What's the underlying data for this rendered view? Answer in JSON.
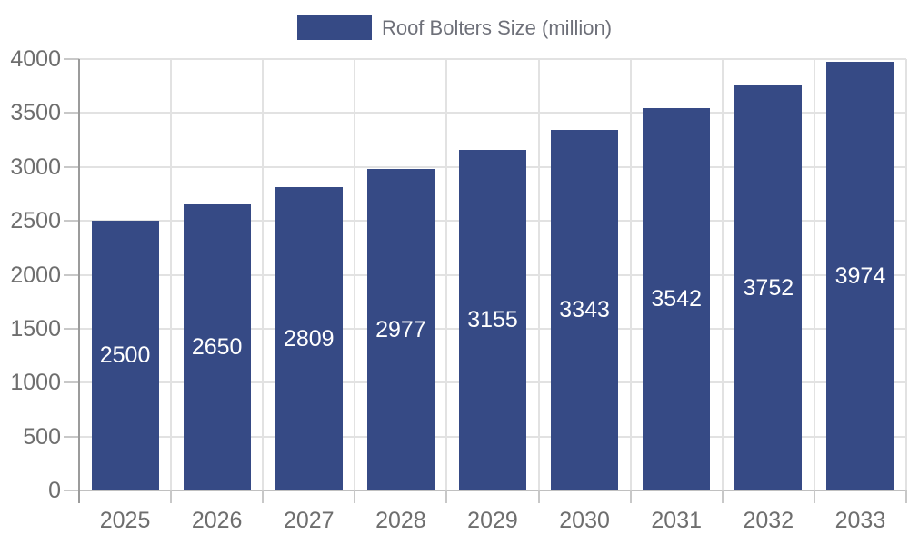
{
  "legend": {
    "label": "Roof Bolters Size (million)"
  },
  "chart_data": {
    "type": "bar",
    "title": "",
    "categories": [
      "2025",
      "2026",
      "2027",
      "2028",
      "2029",
      "2030",
      "2031",
      "2032",
      "2033"
    ],
    "series": [
      {
        "name": "Roof Bolters Size (million)",
        "values": [
          2500,
          2650,
          2809,
          2977,
          3155,
          3343,
          3542,
          3752,
          3974
        ]
      }
    ],
    "xlabel": "",
    "ylabel": "",
    "ylim": [
      0,
      4000
    ],
    "yticks": [
      0,
      500,
      1000,
      1500,
      2000,
      2500,
      3000,
      3500,
      4000
    ],
    "grid": true,
    "legend_position": "top-center",
    "value_labels_shown": true,
    "value_label_position": "inside-center",
    "colors": {
      "bar": "#364A85",
      "value_label": "#FFFFFF",
      "axis_label": "#6E6E6E",
      "gridline": "#E2E2E2",
      "axis_line": "#9B9B9B",
      "tick_mark": "#C8C8C8",
      "bottom_axis": "#C0C0C0",
      "legend_text": "#6E7079"
    }
  }
}
